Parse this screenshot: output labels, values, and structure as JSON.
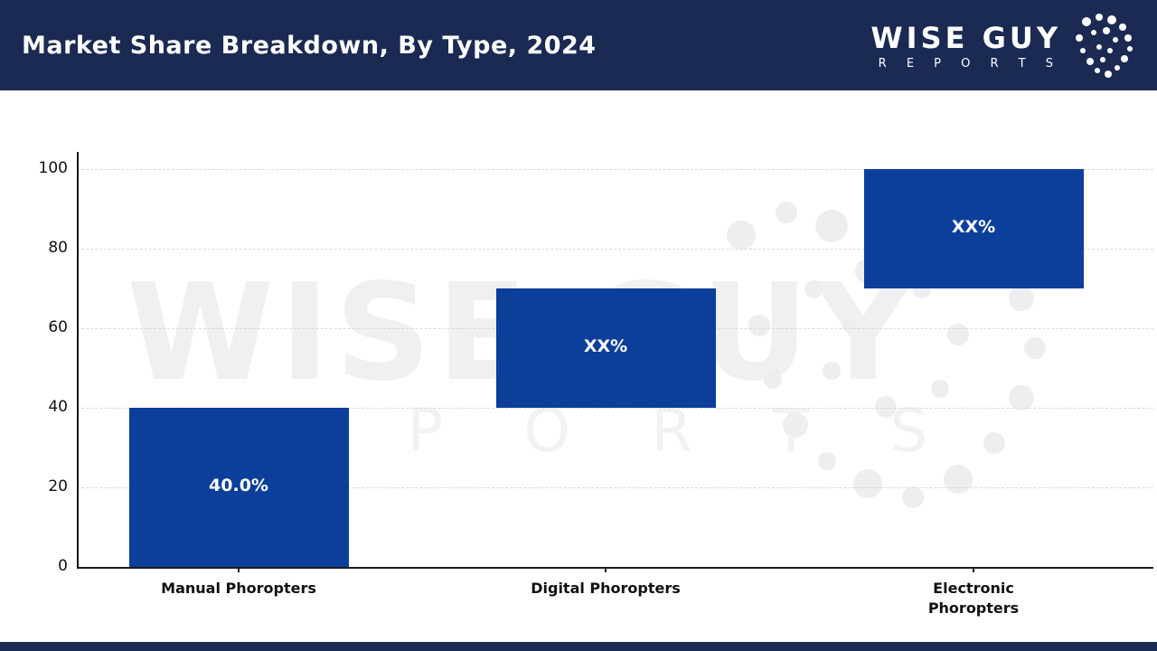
{
  "header": {
    "title": "Market Share Breakdown, By Type, 2024",
    "bg_color": "#1b2a52",
    "logo": {
      "line1": "WISE GUY",
      "line2": "R E P O R T S"
    }
  },
  "watermark": {
    "line1": "WISE GUY",
    "line2": "R E P O R T S"
  },
  "chart_data": {
    "type": "bar",
    "variant": "floating-stacked",
    "title": "Market Share Breakdown, By Type, 2024",
    "categories": [
      "Manual Phoropters",
      "Digital Phoropters",
      "Electronic Phoropters"
    ],
    "category_label_lines": [
      [
        "Manual Phoropters"
      ],
      [
        "Digital Phoropters"
      ],
      [
        "Electronic",
        "Phoropters"
      ]
    ],
    "series": [
      {
        "name": "Market Share",
        "ranges": [
          [
            0,
            40
          ],
          [
            40,
            70
          ],
          [
            70,
            100
          ]
        ],
        "values": [
          40,
          30,
          30
        ],
        "labels": [
          "40.0%",
          "XX%",
          "XX%"
        ]
      }
    ],
    "xlabel": "",
    "ylabel": "",
    "ylim": [
      0,
      100
    ],
    "yticks": [
      0,
      20,
      40,
      60,
      80,
      100
    ],
    "grid": true,
    "grid_style": "dashed",
    "legend": false,
    "bar_color": "#0c3f9a",
    "label_color": "#ffffff"
  }
}
